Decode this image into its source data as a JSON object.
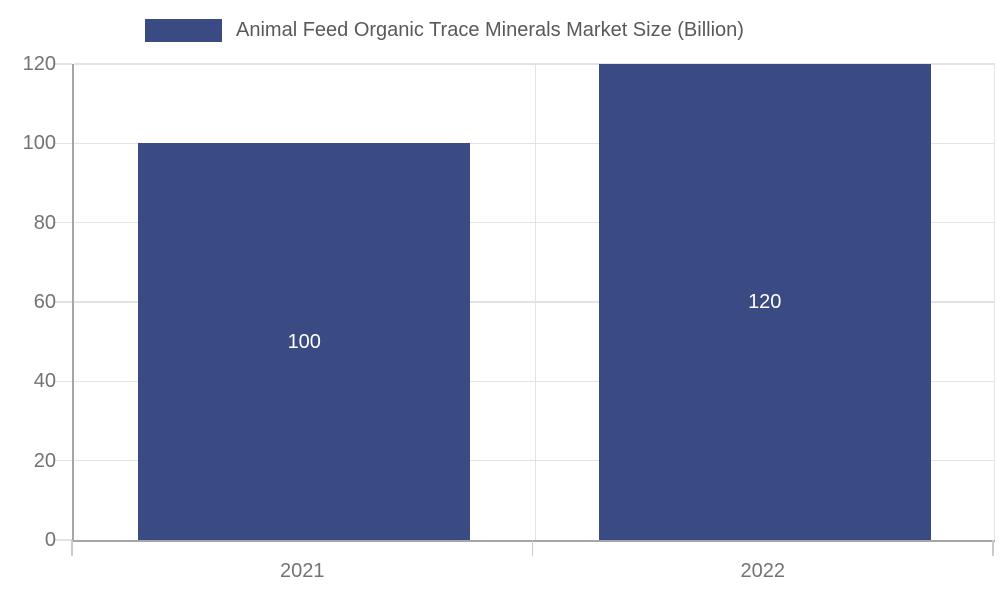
{
  "chart_data": {
    "type": "bar",
    "title": "",
    "legend": "Animal Feed Organic Trace Minerals Market Size (Billion)",
    "legend_position": "top",
    "categories": [
      "2021",
      "2022"
    ],
    "series": [
      {
        "name": "Animal Feed Organic Trace Minerals Market Size (Billion)",
        "values": [
          100,
          120
        ]
      }
    ],
    "bar_labels": [
      "100",
      "120"
    ],
    "xlabel": "",
    "ylabel": "",
    "ylim": [
      0,
      120
    ],
    "y_ticks": [
      0,
      20,
      40,
      60,
      80,
      100,
      120
    ],
    "grid": true
  },
  "colors": {
    "bar": "#3A4A82",
    "bar_label_text": "#ffffff",
    "legend_text": "#58595d",
    "tick_text": "#737373",
    "axis_line": "#a6a6a6",
    "grid_line": "#e3e3e3",
    "tick_mark": "#c9c9d0",
    "background": "#ffffff"
  }
}
